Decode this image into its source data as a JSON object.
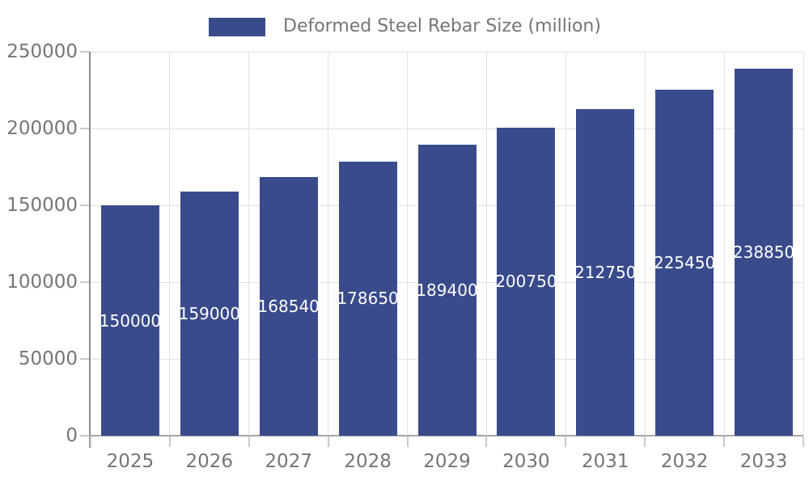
{
  "chart_data": {
    "type": "bar",
    "title": "Deformed Steel Rebar Size (million)",
    "legend": [
      "Deformed Steel Rebar Size (million)"
    ],
    "legend_position": "top-center",
    "categories": [
      "2025",
      "2026",
      "2027",
      "2028",
      "2029",
      "2030",
      "2031",
      "2032",
      "2033"
    ],
    "series": [
      {
        "name": "Deformed Steel Rebar Size (million)",
        "values": [
          150000,
          159000,
          168540,
          178650,
          189400,
          200750,
          212750,
          225450,
          238850
        ]
      }
    ],
    "xlabel": "",
    "ylabel": "",
    "ylim": [
      0,
      250000
    ],
    "yticks": [
      0,
      50000,
      100000,
      150000,
      200000,
      250000
    ],
    "grid": true,
    "value_labels": "inside-center",
    "bar_color": "#3A4B8C",
    "colors": {
      "bar": "#3A4B8C",
      "value_label_text": "#FFFFFF",
      "axis_text": "#757575",
      "legend_text": "#757575",
      "gridline": "#E1E1E1",
      "y_axis_line": "#8C8C8C",
      "x_axis_line": "#A6A6A6",
      "tick_mark": "#C9C9C9",
      "background": "#FFFFFF"
    }
  }
}
